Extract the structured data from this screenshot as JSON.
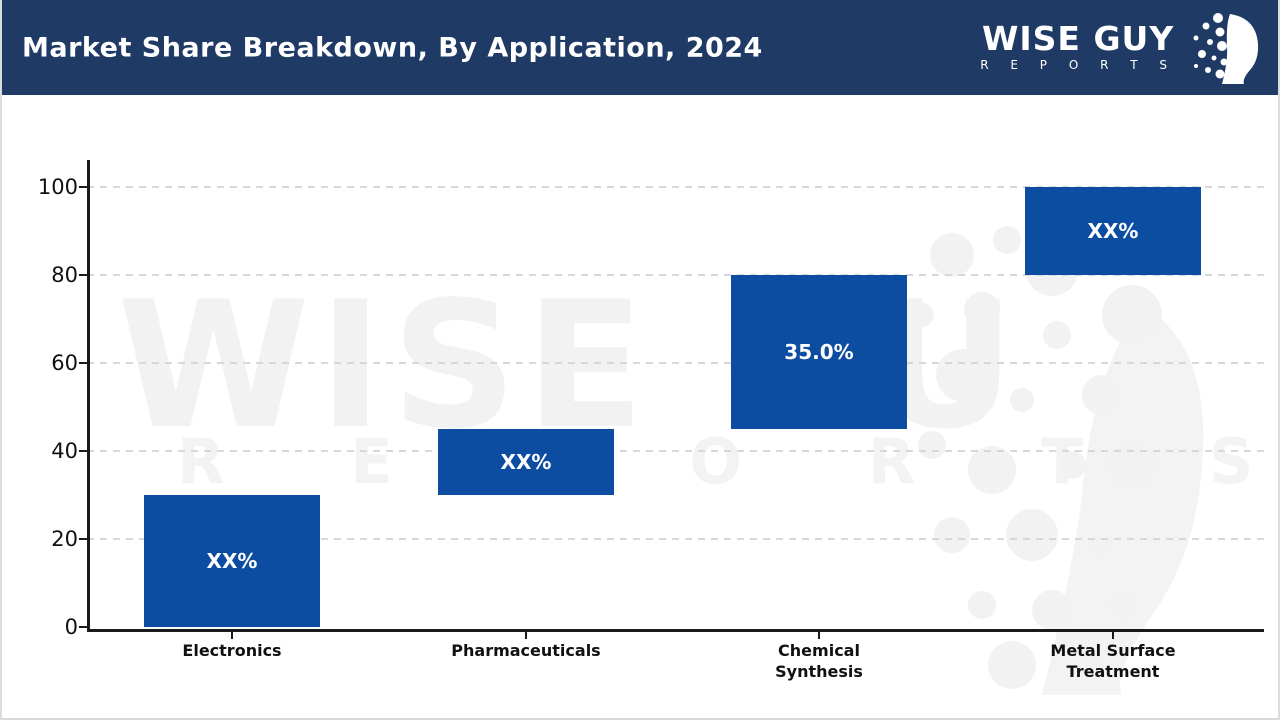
{
  "header": {
    "title": "Market Share Breakdown, By Application, 2024",
    "logo": {
      "line1": "WISE GUY",
      "line2": "R E P O R T S"
    }
  },
  "watermark": {
    "line1": "WISE GU",
    "line2": "R E P O R T S"
  },
  "colors": {
    "header_bg": "#1f3a64",
    "bar": "#0c4da2",
    "grid": "#d8d8d8",
    "axis": "#1a1a1a",
    "bar_label_text": "#ffffff",
    "watermark": "#f2f2f2"
  },
  "chart_data": {
    "type": "bar",
    "subtype": "waterfall",
    "title": "Market Share Breakdown, By Application, 2024",
    "categories": [
      "Electronics",
      "Pharmaceuticals",
      "Chemical Synthesis",
      "Metal Surface Treatment"
    ],
    "bars": [
      {
        "category": "Electronics",
        "from": 0,
        "to": 30,
        "label": "XX%"
      },
      {
        "category": "Pharmaceuticals",
        "from": 30,
        "to": 45,
        "label": "XX%"
      },
      {
        "category": "Chemical Synthesis",
        "from": 45,
        "to": 80,
        "label": "35.0%"
      },
      {
        "category": "Metal Surface Treatment",
        "from": 80,
        "to": 100,
        "label": "XX%"
      }
    ],
    "yticks": [
      0,
      20,
      40,
      60,
      80,
      100
    ],
    "ylim": [
      0,
      100
    ],
    "xlabel": "",
    "ylabel": "",
    "grid": "horizontal-dashed",
    "legend": "none"
  }
}
